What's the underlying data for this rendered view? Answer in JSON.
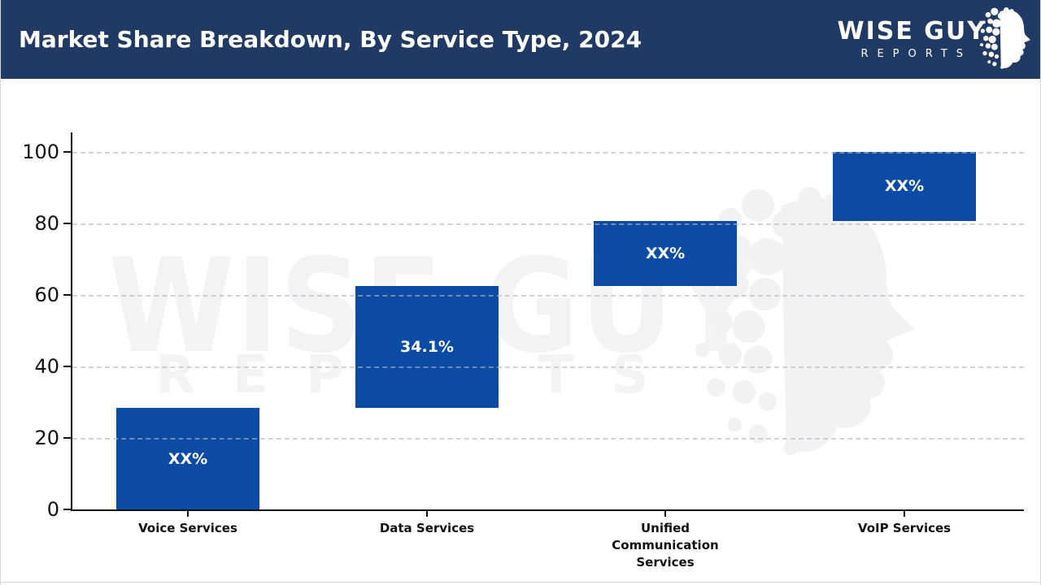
{
  "page": {
    "background": "#ffffff",
    "border_color": "#d9d9d9"
  },
  "header": {
    "bg": "#213A63",
    "logo": {
      "wordmark": "WISE GUY",
      "subtext": "REPORTS"
    }
  },
  "watermark": {
    "wordmark": "WISE GUY",
    "subtext": "REPORTS"
  },
  "chart_data": {
    "type": "bar",
    "subtype": "waterfall",
    "title": "Market Share Breakdown, By Service Type, 2024",
    "categories": [
      "Voice Services",
      "Data Services",
      "Unified Communication Services",
      "VoIP Services"
    ],
    "segments": [
      {
        "category": "Voice Services",
        "start": 0,
        "end": 28.4,
        "value": 28.4,
        "label": "XX%"
      },
      {
        "category": "Data Services",
        "start": 28.4,
        "end": 62.5,
        "value": 34.1,
        "label": "34.1%"
      },
      {
        "category": "Unified Communication Services",
        "start": 62.5,
        "end": 80.7,
        "value": 18.2,
        "label": "XX%"
      },
      {
        "category": "VoIP Services",
        "start": 80.7,
        "end": 100,
        "value": 19.3,
        "label": "XX%"
      }
    ],
    "xlabel": "",
    "ylabel": "",
    "ylim": [
      0,
      100
    ],
    "yticks": [
      0,
      20,
      40,
      60,
      80,
      100
    ],
    "grid": "horizontal-dashed",
    "legend": "none",
    "bar_color": "#0B4BA5",
    "bar_label_color": "#ffffff"
  }
}
